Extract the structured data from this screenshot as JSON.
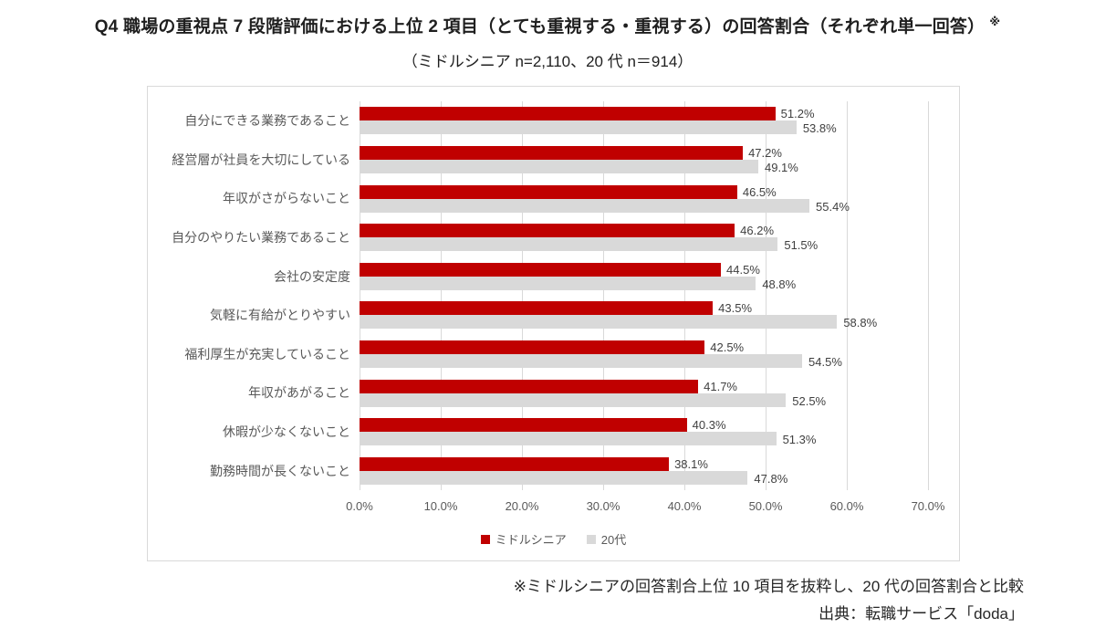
{
  "header": {
    "title": "Q4 職場の重視点 7 段階評価における上位 2 項目（とても重視する・重視する）の回答割合（それぞれ単一回答）",
    "note_mark": "※",
    "subtitle": "（ミドルシニア n=2,110、20 代 n＝914）"
  },
  "chart_data": {
    "type": "bar",
    "orientation": "horizontal",
    "categories": [
      "自分にできる業務であること",
      "経営層が社員を大切にしている",
      "年収がさがらないこと",
      "自分のやりたい業務であること",
      "会社の安定度",
      "気軽に有給がとりやすい",
      "福利厚生が充実していること",
      "年収があがること",
      "休暇が少なくないこと",
      "勤務時間が長くないこと"
    ],
    "series": [
      {
        "name": "ミドルシニア",
        "color": "#c00000",
        "values": [
          51.2,
          47.2,
          46.5,
          46.2,
          44.5,
          43.5,
          42.5,
          41.7,
          40.3,
          38.1
        ]
      },
      {
        "name": "20代",
        "color": "#d9d9d9",
        "values": [
          53.8,
          49.1,
          55.4,
          51.5,
          48.8,
          58.8,
          54.5,
          52.5,
          51.3,
          47.8
        ]
      }
    ],
    "value_suffix": "%",
    "xlim": [
      0,
      70
    ],
    "x_tick_labels": [
      "0.0%",
      "10.0%",
      "20.0%",
      "30.0%",
      "40.0%",
      "50.0%",
      "60.0%",
      "70.0%"
    ],
    "grid": true,
    "legend_position": "bottom"
  },
  "footer": {
    "footnote": "※ミドルシニアの回答割合上位 10 項目を抜粋し、20 代の回答割合と比較",
    "source": "出典：転職サービス「doda」"
  },
  "colors": {
    "series1": "#c00000",
    "series2": "#d9d9d9",
    "grid": "#d9d9d9",
    "frame_border": "#d9d9d9",
    "category_text": "#595959",
    "tick_text": "#595959",
    "value_text": "#404040",
    "title_text": "#1f1f1f"
  }
}
